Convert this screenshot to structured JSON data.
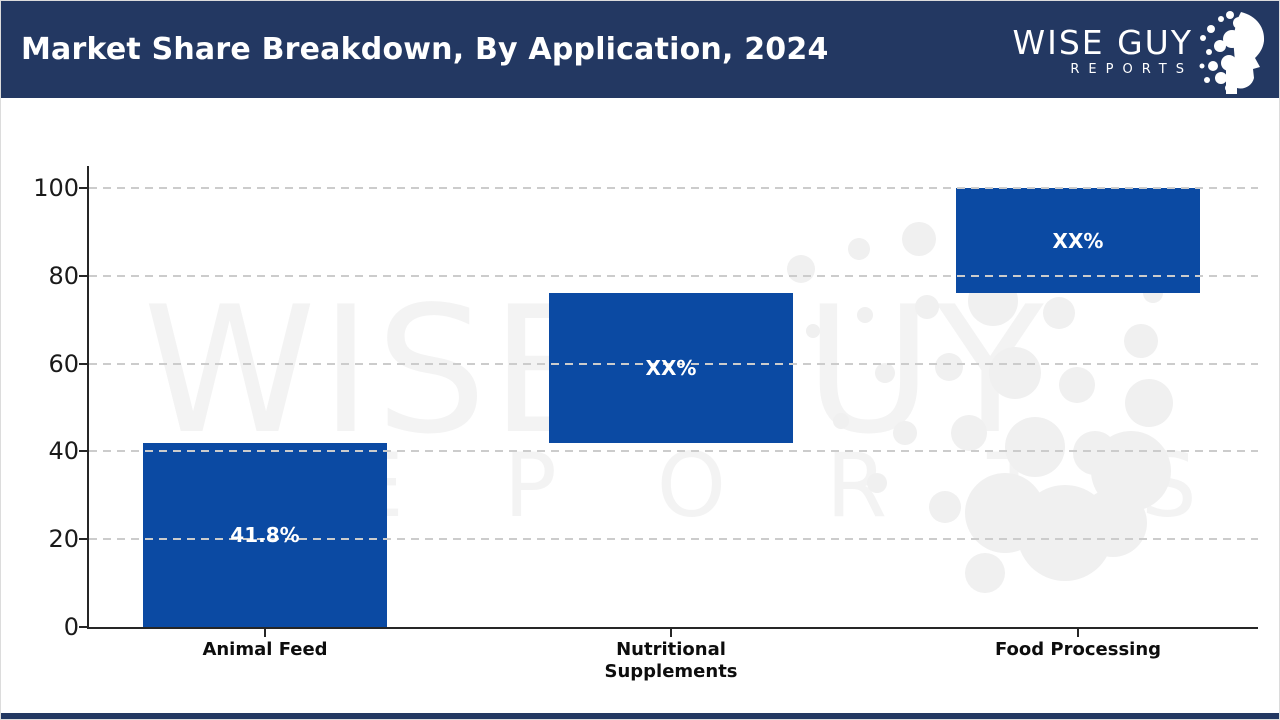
{
  "header": {
    "title": "Market Share Breakdown, By Application, 2024",
    "background_color": "#233862",
    "logo": {
      "line1": "WISE GUY",
      "line2": "REPORTS",
      "head_icon": "dotted-head-profile"
    }
  },
  "watermark": {
    "line1": "WISE GUY",
    "line2": "R E P O R T S"
  },
  "chart_data": {
    "type": "bar",
    "variant": "waterfall",
    "title": "Market Share Breakdown, By Application, 2024",
    "categories": [
      "Animal Feed",
      "Nutritional Supplements",
      "Food Processing"
    ],
    "segments": [
      {
        "category": "Animal Feed",
        "start": 0,
        "end": 41.8,
        "label": "41.8%"
      },
      {
        "category": "Nutritional Supplements",
        "start": 41.8,
        "end": 76,
        "label": "XX%"
      },
      {
        "category": "Food Processing",
        "start": 76,
        "end": 100,
        "label": "XX%"
      }
    ],
    "xlabel": "",
    "ylabel": "",
    "ylim": [
      0,
      100
    ],
    "yticks": [
      0,
      20,
      40,
      60,
      80,
      100
    ],
    "grid": "horizontal-dashed",
    "legend": "none",
    "bar_color": "#0b4aa3",
    "bar_label_color": "#ffffff",
    "axis_color": "#262626",
    "gridline_color": "#cccccc",
    "tick_label_color": "#1a1a1a"
  },
  "footer": {
    "background_color": "#233862"
  }
}
